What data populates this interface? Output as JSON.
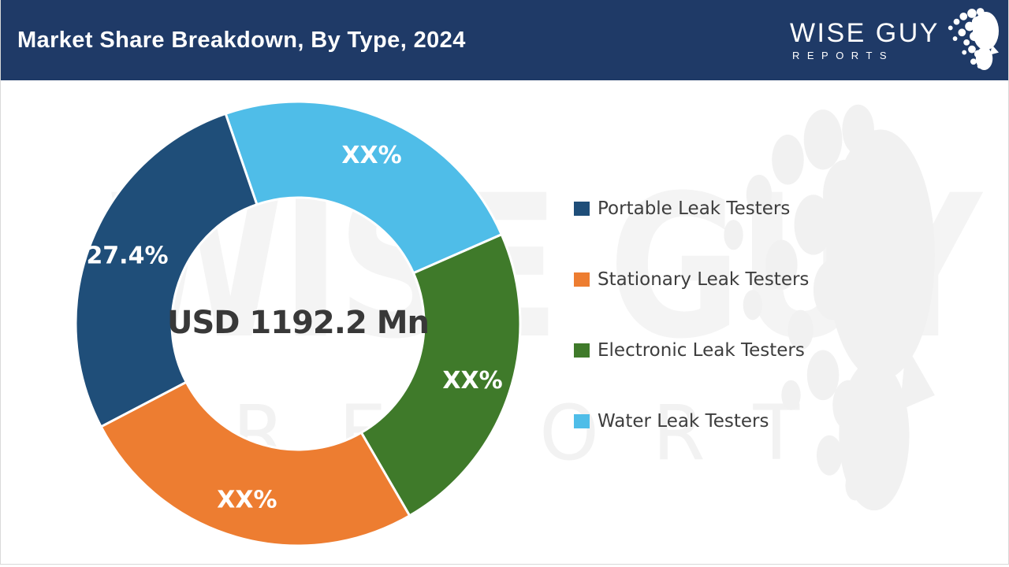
{
  "header": {
    "title": "Market Share Breakdown, By Type, 2024",
    "logo": {
      "line1": "WISE GUY",
      "line2": "REPORTS"
    }
  },
  "theme": {
    "header_bg": "#1f3a67",
    "slice_gap_color": "#ffffff",
    "legend_text_color": "#3d3d3d",
    "center_text_color": "#383838"
  },
  "watermark": {
    "line1": "WISE GUY",
    "line2": "REPORTS"
  },
  "chart_data": {
    "type": "pie",
    "subtype": "donut",
    "title": "Market Share Breakdown, By Type, 2024",
    "center_label": "USD 1192.2 Mn",
    "total": "USD 1192.2 Mn",
    "start_angle_deg": -19,
    "legend_position": "right",
    "segments": [
      {
        "name": "Portable Leak Testers",
        "value_pct": 27.4,
        "label": "27.4%",
        "color": "#1f4e79"
      },
      {
        "name": "Stationary Leak Testers",
        "value_pct": 25.7,
        "label": "XX%",
        "color": "#ed7d31"
      },
      {
        "name": "Electronic Leak Testers",
        "value_pct": 23.2,
        "label": "XX%",
        "color": "#3f7a2a"
      },
      {
        "name": "Water Leak Testers",
        "value_pct": 23.7,
        "label": "XX%",
        "color": "#4fbde8"
      }
    ],
    "draw_order": [
      "Water Leak Testers",
      "Electronic Leak Testers",
      "Stationary Leak Testers",
      "Portable Leak Testers"
    ]
  }
}
